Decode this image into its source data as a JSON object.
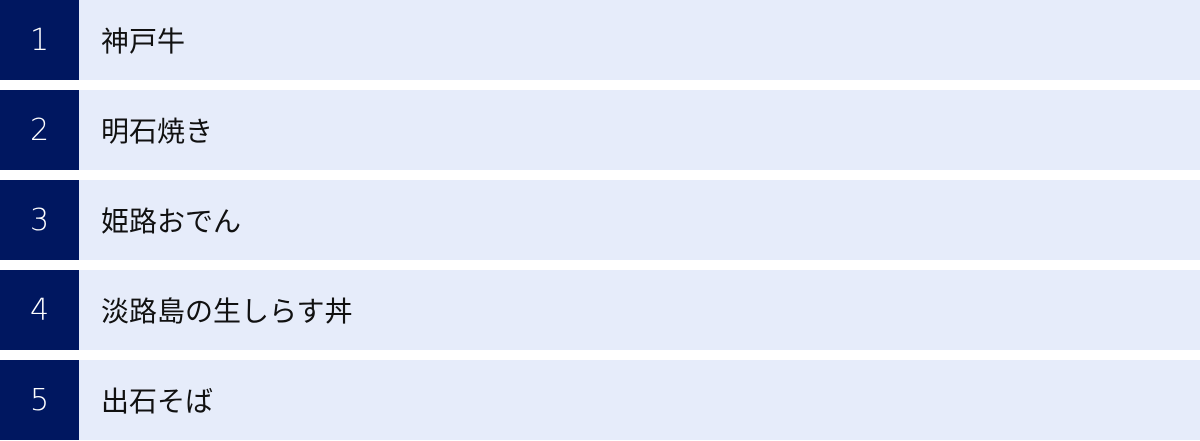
{
  "colors": {
    "number_bg": "#001760",
    "row_bg": "#e6ecfa"
  },
  "items": [
    {
      "number": "1",
      "label": "神戸牛"
    },
    {
      "number": "2",
      "label": "明石焼き"
    },
    {
      "number": "3",
      "label": "姫路おでん"
    },
    {
      "number": "4",
      "label": "淡路島の生しらす丼"
    },
    {
      "number": "5",
      "label": "出石そば"
    }
  ]
}
